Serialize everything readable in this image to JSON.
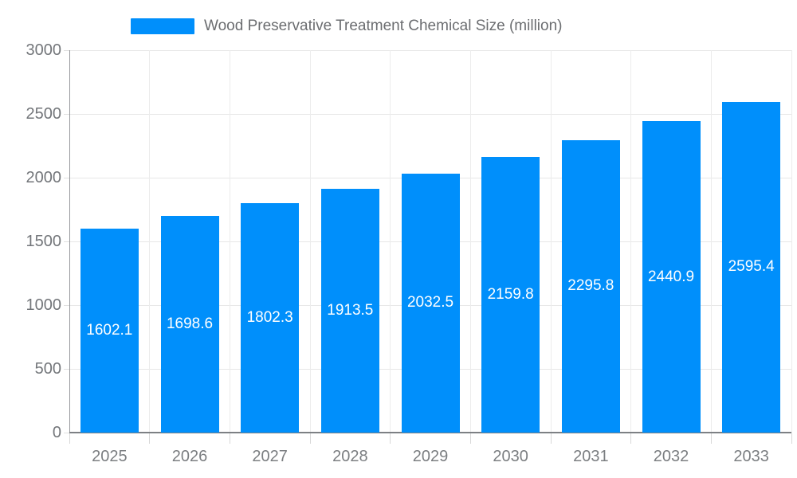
{
  "legend": {
    "label": "Wood Preservative Treatment Chemical Size (million)",
    "swatch_color": "#008FFB"
  },
  "chart_data": {
    "type": "bar",
    "title": "Wood Preservative Treatment Chemical Size (million)",
    "series": [
      {
        "name": "Wood Preservative Treatment Chemical Size (million)",
        "values": [
          1602.1,
          1698.6,
          1802.3,
          1913.5,
          2032.5,
          2159.8,
          2295.8,
          2440.9,
          2595.4
        ]
      }
    ],
    "categories": [
      "2025",
      "2026",
      "2027",
      "2028",
      "2029",
      "2030",
      "2031",
      "2032",
      "2033"
    ],
    "value_labels": [
      "1602.1",
      "1698.6",
      "1802.3",
      "1913.5",
      "2032.5",
      "2159.8",
      "2295.8",
      "2440.9",
      "2595.4"
    ],
    "ylim": [
      0,
      3000
    ],
    "yticks": [
      0,
      500,
      1000,
      1500,
      2000,
      2500,
      3000
    ],
    "ytick_labels": [
      "0",
      "500",
      "1000",
      "1500",
      "2000",
      "2500",
      "3000"
    ],
    "xlabel": "",
    "ylabel": "",
    "grid": true,
    "legend_position": "top",
    "bar_color": "#008FFB",
    "data_label_color": "#ffffff"
  }
}
